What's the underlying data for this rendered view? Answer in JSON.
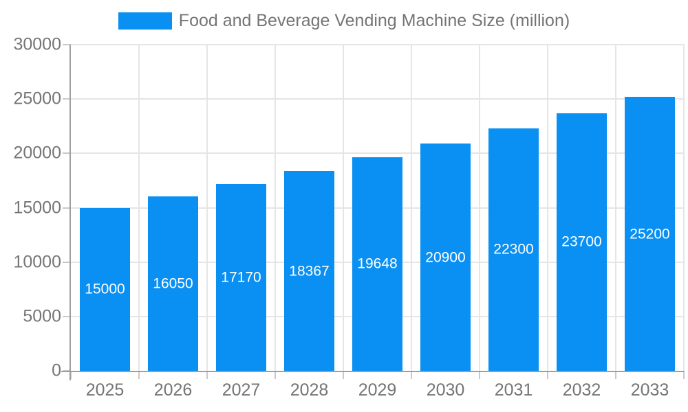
{
  "page": {
    "background": "#ffffff"
  },
  "chart_data": {
    "type": "bar",
    "series_name": "Food and Beverage Vending Machine Size (million)",
    "categories": [
      "2025",
      "2026",
      "2027",
      "2028",
      "2029",
      "2030",
      "2031",
      "2032",
      "2033"
    ],
    "values": [
      15000,
      16050,
      17170,
      18367,
      19648,
      20900,
      22300,
      23700,
      25200
    ],
    "title": "",
    "xlabel": "",
    "ylabel": "",
    "ylim": [
      0,
      30000
    ],
    "yticks": [
      0,
      5000,
      10000,
      15000,
      20000,
      25000,
      30000
    ],
    "grid": true,
    "legend_position": "top-center",
    "bar_color": "#0a90f2",
    "bar_label_color": "#ffffff",
    "axis_text_color": "#757575",
    "gridline_color": "#e5e5e5",
    "axis_line_color": "#9e9e9e"
  }
}
